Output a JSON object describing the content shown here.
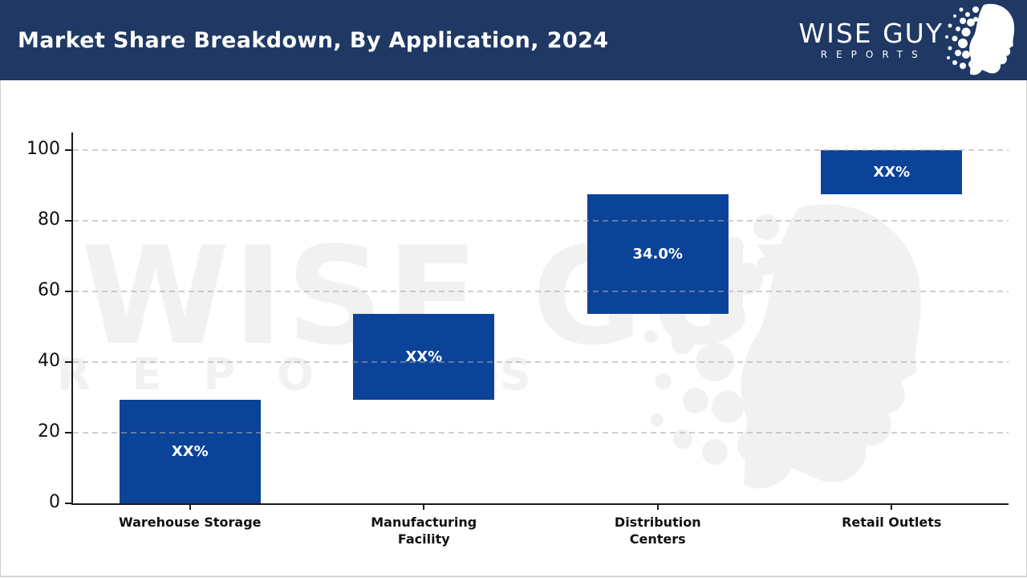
{
  "header": {
    "title": "Market Share Breakdown, By Application, 2024",
    "bg_color": "#1f3864",
    "logo": {
      "line1": "WISE GUY",
      "line2": "REPORTS"
    }
  },
  "watermark": {
    "line1": "WISE GUY",
    "line2": "REPORTS",
    "color": "#f1f1f1"
  },
  "chart_data": {
    "type": "bar",
    "subtype": "floating-segment-waterfall",
    "title": "Market Share Breakdown, By Application, 2024",
    "categories": [
      "Warehouse Storage",
      "Manufacturing Facility",
      "Distribution Centers",
      "Retail Outlets"
    ],
    "category_label_lines": [
      [
        "Warehouse Storage"
      ],
      [
        "Manufacturing",
        "Facility"
      ],
      [
        "Distribution",
        "Centers"
      ],
      [
        "Retail Outlets"
      ]
    ],
    "series": [
      {
        "name": "Market share (%)",
        "segments": [
          {
            "category": "Warehouse Storage",
            "start": 0,
            "end": 29.3,
            "label": "XX%"
          },
          {
            "category": "Manufacturing Facility",
            "start": 29.3,
            "end": 53.6,
            "label": "XX%"
          },
          {
            "category": "Distribution Centers",
            "start": 53.6,
            "end": 87.6,
            "value": 34.0,
            "label": "34.0%"
          },
          {
            "category": "Retail Outlets",
            "start": 87.6,
            "end": 100,
            "label": "XX%"
          }
        ]
      }
    ],
    "ylim": [
      0,
      100
    ],
    "yticks": [
      0,
      20,
      40,
      60,
      80,
      100
    ],
    "grid": {
      "horizontal": true,
      "style": "dashed"
    },
    "legend": "none",
    "bar_color": "#0b4399",
    "bar_label_color": "#ffffff",
    "axis_color": "#1a1a1a"
  }
}
